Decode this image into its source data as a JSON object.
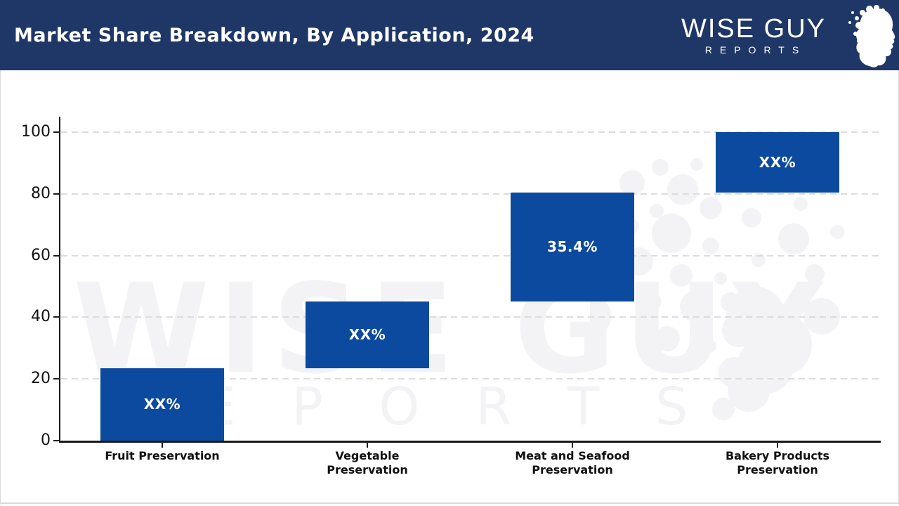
{
  "header": {
    "title": "Market Share Breakdown, By Application, 2024",
    "logo": {
      "wordmark": "WISE GUY",
      "sub": "REPORTS"
    }
  },
  "watermark": {
    "line1": "WISE GUY",
    "line2": "R E P O R T S"
  },
  "chart_data": {
    "type": "bar",
    "subtype": "waterfall-floating-bars",
    "title": "Market Share Breakdown, By Application, 2024",
    "xlabel": "",
    "ylabel": "",
    "categories": [
      "Fruit Preservation",
      "Vegetable\nPreservation",
      "Meat and Seafood\nPreservation",
      "Bakery Products\nPreservation"
    ],
    "segments": [
      {
        "category": "Fruit Preservation",
        "start": 0,
        "end": 23.5,
        "value": 23.5,
        "display_label": "XX%"
      },
      {
        "category": "Vegetable Preservation",
        "start": 23.5,
        "end": 45.1,
        "value": 21.6,
        "display_label": "XX%"
      },
      {
        "category": "Meat and Seafood Preservation",
        "start": 45.1,
        "end": 80.5,
        "value": 35.4,
        "display_label": "35.4%"
      },
      {
        "category": "Bakery Products Preservation",
        "start": 80.5,
        "end": 100,
        "value": 19.5,
        "display_label": "XX%"
      }
    ],
    "yticks": [
      0,
      20,
      40,
      60,
      80,
      100
    ],
    "ylim": [
      0,
      105
    ],
    "grid": "horizontal dashed",
    "legend": "none",
    "bar_color": "#0b4a9e",
    "bar_label_color": "#ffffff"
  },
  "colors": {
    "header_bg": "#1f3766",
    "bar": "#0b4a9e",
    "axis": "#1a1a1a",
    "grid": "#dcdcdc",
    "watermark": "#f3f3f5",
    "divider": "#d9d9d9",
    "bar_label": "#ffffff",
    "title": "#ffffff",
    "tick_label": "#111111"
  }
}
